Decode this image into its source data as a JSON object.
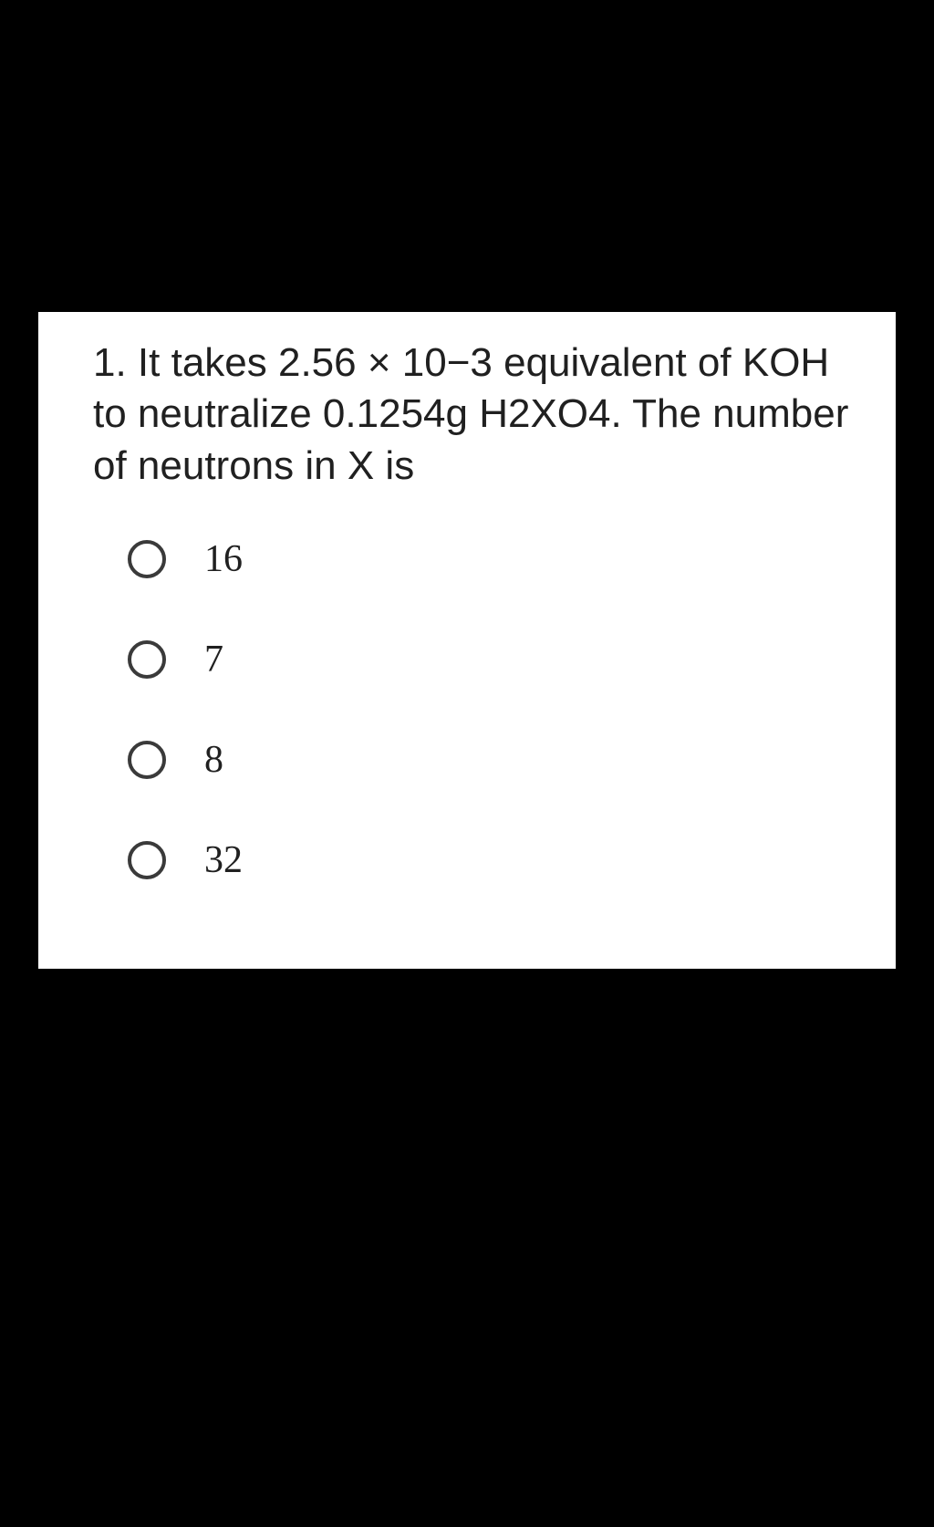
{
  "question": {
    "number": "1",
    "text": "1. It takes 2.56 × 10−3 equivalent of KOH to neutralize 0.1254g H2XO4. The number of neutrons in X is"
  },
  "options": [
    {
      "label": "16"
    },
    {
      "label": "7"
    },
    {
      "label": "8"
    },
    {
      "label": "32"
    }
  ],
  "colors": {
    "page_bg": "#000000",
    "card_bg": "#ffffff",
    "text": "#202020",
    "radio_border": "#3a3a3a"
  }
}
